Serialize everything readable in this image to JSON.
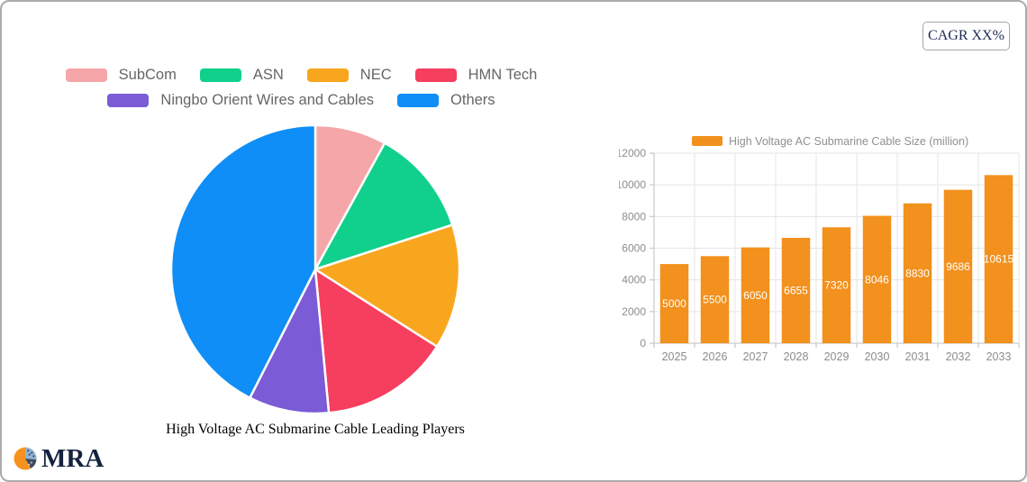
{
  "header": {
    "cagr_label": "CAGR XX%"
  },
  "logo": {
    "text": "MRA"
  },
  "chart_data": [
    {
      "type": "pie",
      "title": "High Voltage AC Submarine Cable Leading Players",
      "labels": [
        "SubCom",
        "ASN",
        "NEC",
        "HMN Tech",
        "Ningbo Orient Wires and Cables",
        "Others"
      ],
      "values": [
        8,
        12,
        14,
        14.5,
        9,
        42.5
      ],
      "value_format": "percent share, estimated from slice angles (no data labels shown)",
      "colors": [
        "#f5a6a8",
        "#10d08c",
        "#f9a61f",
        "#f63e5e",
        "#7b5cd6",
        "#0e8ef6"
      ],
      "start_angle": "top",
      "direction": "clockwise",
      "legend_position": "top",
      "legend_rows": [
        [
          0,
          1,
          2,
          3
        ],
        [
          4,
          5
        ]
      ],
      "slice_border_color": "#ffffff"
    },
    {
      "type": "bar",
      "legend_label": "High Voltage AC Submarine Cable Size (million)",
      "categories": [
        "2025",
        "2026",
        "2027",
        "2028",
        "2029",
        "2030",
        "2031",
        "2032",
        "2033"
      ],
      "values": [
        5000,
        5500,
        6050,
        6655,
        7320,
        8046,
        8830,
        9686,
        10615
      ],
      "ylim": [
        0,
        12000
      ],
      "ytick_step": 2000,
      "yticks": [
        0,
        2000,
        4000,
        6000,
        8000,
        10000,
        12000
      ],
      "bar_color": "#f2911d",
      "value_label_color": "#ffffff",
      "value_label_position": "inside-center",
      "grid": true,
      "gridline_color": "#e5e5e5",
      "axis_color": "#cccccc",
      "tick_label_color": "#8c8c8c",
      "legend_position": "top",
      "legend_text_color": "#909090"
    }
  ]
}
